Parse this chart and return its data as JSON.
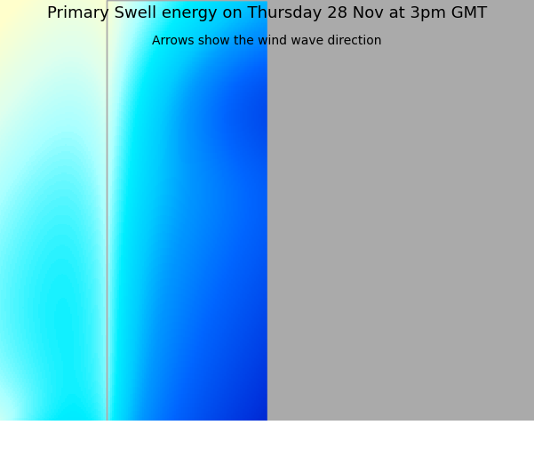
{
  "title": "Primary Swell energy on Thursday 28 Nov at 3pm GMT",
  "subtitle": "Arrows show the wind wave direction",
  "title_fontsize": 13,
  "subtitle_fontsize": 10,
  "fig_width": 6.01,
  "fig_height": 5.14,
  "dpi": 100,
  "map_extent": [
    -25,
    15,
    5,
    38
  ],
  "ocean_colors": {
    "deep_blue": "#0000aa",
    "mid_blue": "#0055ff",
    "light_blue": "#00aaff",
    "cyan": "#00ffff",
    "light_cyan": "#aaffff",
    "yellow": "#ffff88",
    "black": "#000000"
  },
  "land_color": "#aaaaaa",
  "border_color": "#000000",
  "title_bg": "#ffffff",
  "arrow_color": "#00ffcc"
}
